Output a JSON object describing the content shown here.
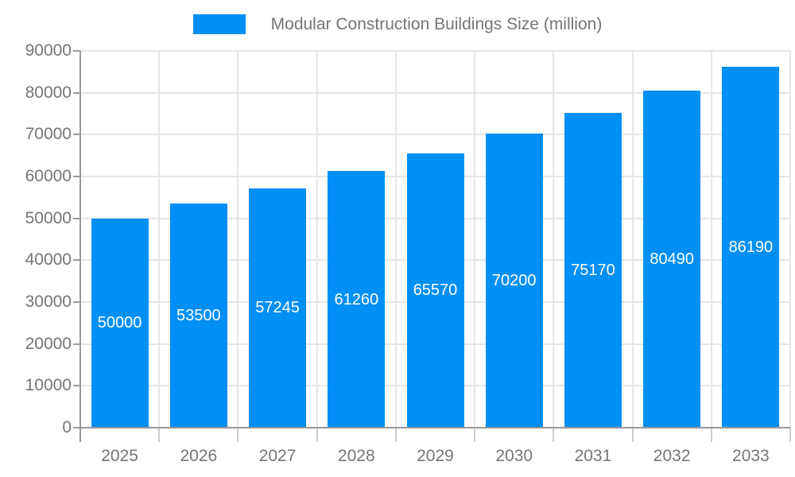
{
  "chart_data": {
    "type": "bar",
    "title": "Modular Construction Buildings Size (million)",
    "legend": {
      "position": "top",
      "entries": [
        "Modular Construction Buildings Size (million)"
      ]
    },
    "categories": [
      "2025",
      "2026",
      "2027",
      "2028",
      "2029",
      "2030",
      "2031",
      "2032",
      "2033"
    ],
    "series": [
      {
        "name": "Modular Construction Buildings Size (million)",
        "values": [
          50000,
          53500,
          57245,
          61260,
          65570,
          70200,
          75170,
          80490,
          86190
        ]
      }
    ],
    "data_labels": [
      "50000",
      "53500",
      "57245",
      "61260",
      "65570",
      "70200",
      "75170",
      "80490",
      "86190"
    ],
    "xlabel": "",
    "ylabel": "",
    "ylim": [
      0,
      90000
    ],
    "ytick_step": 10000,
    "yticks": [
      0,
      10000,
      20000,
      30000,
      40000,
      50000,
      60000,
      70000,
      80000,
      90000
    ],
    "grid": true,
    "colors": {
      "bar": "#008FF5",
      "axis_label": "#757575",
      "data_label": "#ffffff",
      "grid_line": "#e6e6e6",
      "axis_line": "#999999",
      "minor_tick": "#cccccc",
      "background": "#ffffff"
    }
  }
}
